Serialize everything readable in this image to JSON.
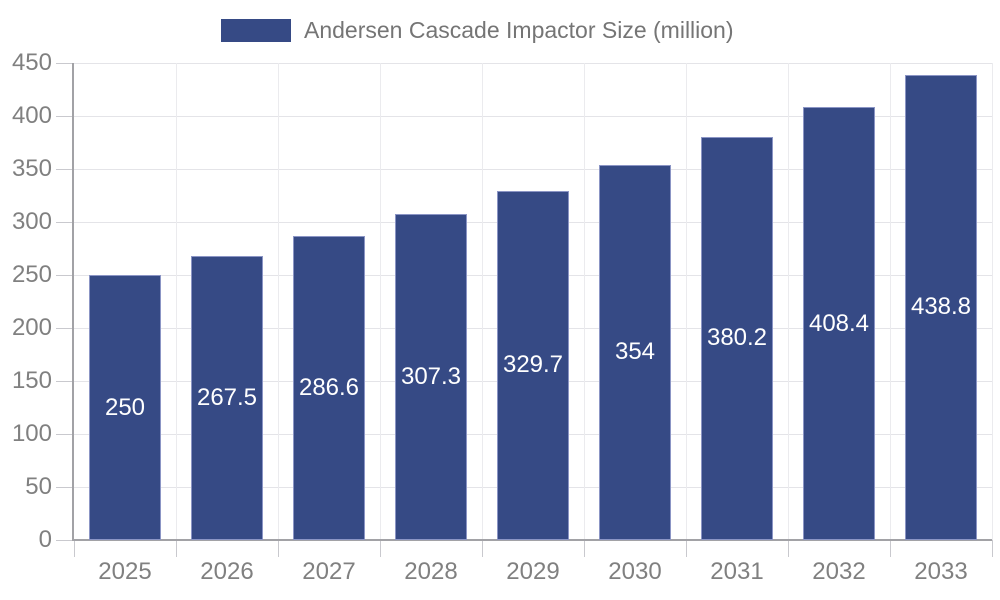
{
  "chart_data": {
    "type": "bar",
    "title": "",
    "legend": "Andersen Cascade Impactor Size (million)",
    "legend_position": "top",
    "categories": [
      "2025",
      "2026",
      "2027",
      "2028",
      "2029",
      "2030",
      "2031",
      "2032",
      "2033"
    ],
    "values": [
      250,
      267.5,
      286.6,
      307.3,
      329.7,
      354,
      380.2,
      408.4,
      438.8
    ],
    "value_labels": [
      "250",
      "267.5",
      "286.6",
      "307.3",
      "329.7",
      "354",
      "380.2",
      "408.4",
      "438.8"
    ],
    "xlabel": "",
    "ylabel": "",
    "ylim": [
      0,
      450
    ],
    "y_ticks": [
      "0",
      "50",
      "100",
      "150",
      "200",
      "250",
      "300",
      "350",
      "400",
      "450"
    ],
    "grid": true,
    "colors": {
      "bar": "#364a85",
      "bar_edge": "#8b95c5",
      "grid_h": "#e4e4e8",
      "grid_v": "#ebebee",
      "axis": "#a2a2a6",
      "tick": "#c9c9ce",
      "tick_label": "#808080",
      "value_label": "#ffffff",
      "legend_text": "#757575",
      "background": "#ffffff"
    }
  }
}
